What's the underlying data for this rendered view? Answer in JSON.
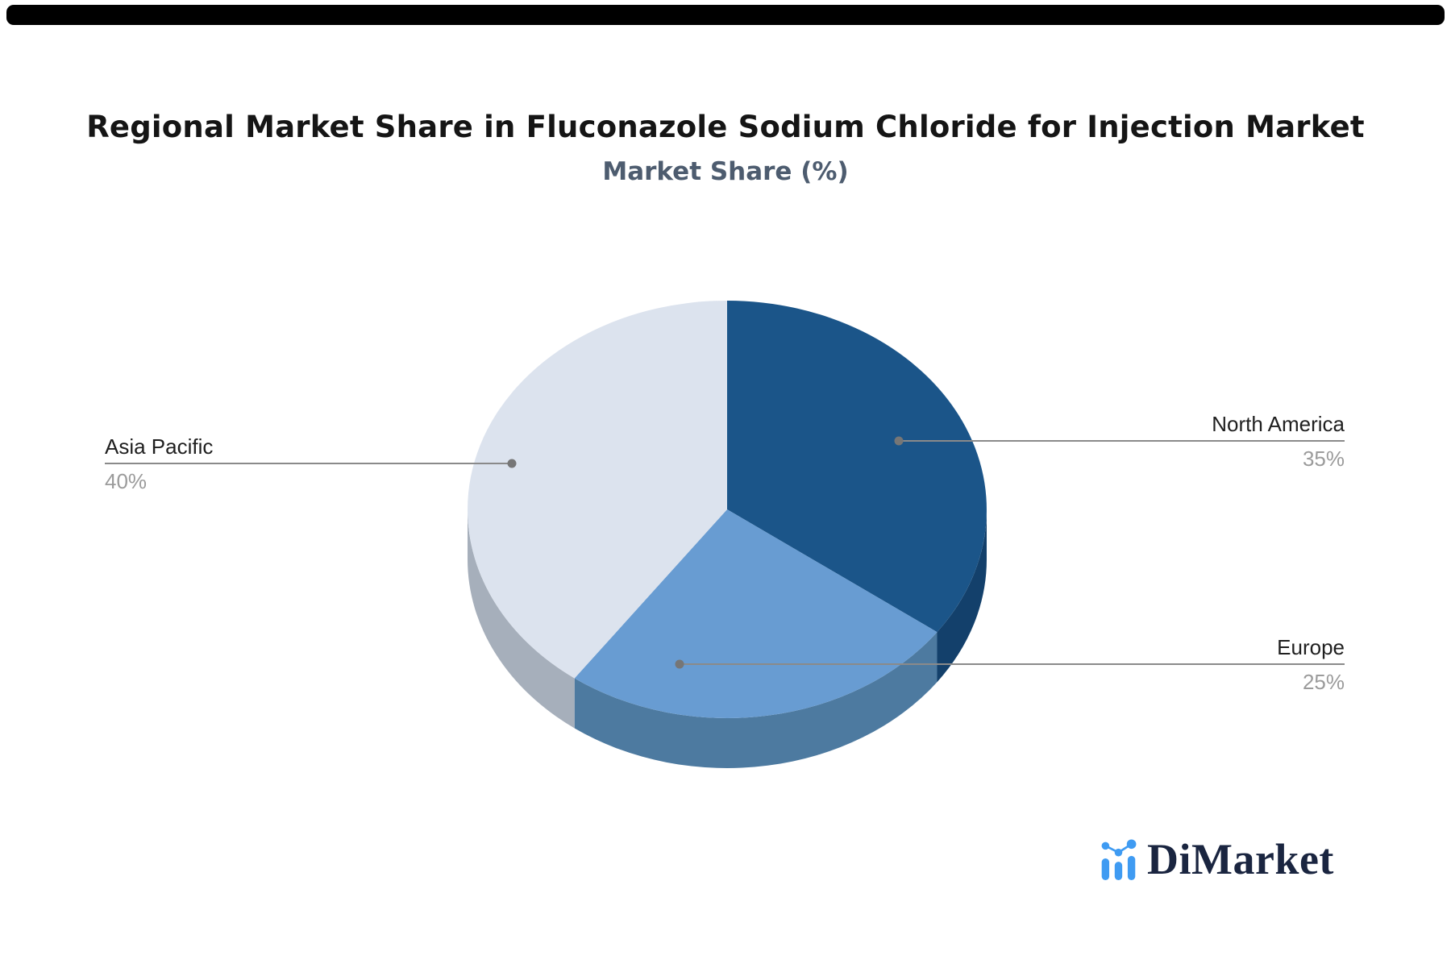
{
  "page": {
    "background": "#ffffff",
    "top_bar_color": "#000000"
  },
  "header": {
    "title": "Regional Market Share in Fluconazole Sodium Chloride for Injection Market",
    "subtitle": "Market Share (%)"
  },
  "chart_data": {
    "type": "pie",
    "title": "Regional Market Share in Fluconazole Sodium Chloride for Injection Market",
    "subtitle": "Market Share (%)",
    "unit": "%",
    "effect": "3d",
    "direction": "clockwise",
    "start_angle_deg_from_top": 0,
    "legend": "none",
    "labels_position": "outside-with-leader-lines",
    "categories": [
      "North America",
      "Europe",
      "Asia Pacific"
    ],
    "values": [
      35,
      25,
      40
    ],
    "slices": [
      {
        "id": "north_america",
        "label": "North America",
        "value": 35,
        "color": "#1b5589",
        "rim_color": "#13406b"
      },
      {
        "id": "europe",
        "label": "Europe",
        "value": 25,
        "color": "#689cd2",
        "rim_color": "#4d7aa0"
      },
      {
        "id": "asia_pacific",
        "label": "Asia Pacific",
        "value": 40,
        "color": "#dce3ee",
        "rim_color": "#a6afbb"
      }
    ]
  },
  "callouts": {
    "north_america": {
      "label": "North America",
      "value": "35%"
    },
    "europe": {
      "label": "Europe",
      "value": "25%"
    },
    "asia_pacific": {
      "label": "Asia Pacific",
      "value": "40%"
    }
  },
  "callout_style": {
    "line_color": "#8a8a8a",
    "dot_color": "#767676",
    "label_color": "#1f1f1f",
    "value_color": "#9b9b9b"
  },
  "logo": {
    "text": "DiMarket",
    "icon": "bar-chart-logo-icon",
    "icon_color": "#3f9bf2",
    "text_color": "#1a2540"
  }
}
